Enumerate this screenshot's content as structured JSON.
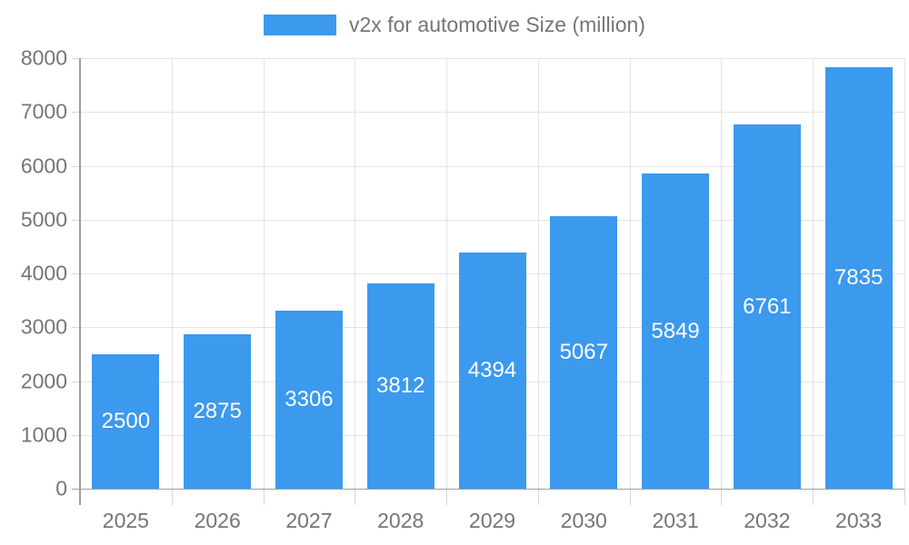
{
  "chart_data": {
    "type": "bar",
    "title": "v2x for automotive Size (million)",
    "categories": [
      "2025",
      "2026",
      "2027",
      "2028",
      "2029",
      "2030",
      "2031",
      "2032",
      "2033"
    ],
    "values": [
      2500,
      2875,
      3306,
      3812,
      4394,
      5067,
      5849,
      6761,
      7835
    ],
    "xlabel": "",
    "ylabel": "",
    "ylim": [
      0,
      8000
    ],
    "ytick_step": 1000,
    "ytick_labels": [
      "0",
      "1000",
      "2000",
      "3000",
      "4000",
      "5000",
      "6000",
      "7000",
      "8000"
    ],
    "grid": true,
    "legend": {
      "position": "top-center",
      "label": "v2x for automotive Size (million)"
    },
    "value_labels": "inside-center",
    "colors": {
      "bar": "#3b99ee",
      "axis_line": "#9e9e9e",
      "gridline": "#e3e3e3",
      "tick": "#d6d6d6",
      "axis_text": "#757575",
      "value_label_text": "#ffffff",
      "background": "#ffffff"
    }
  }
}
